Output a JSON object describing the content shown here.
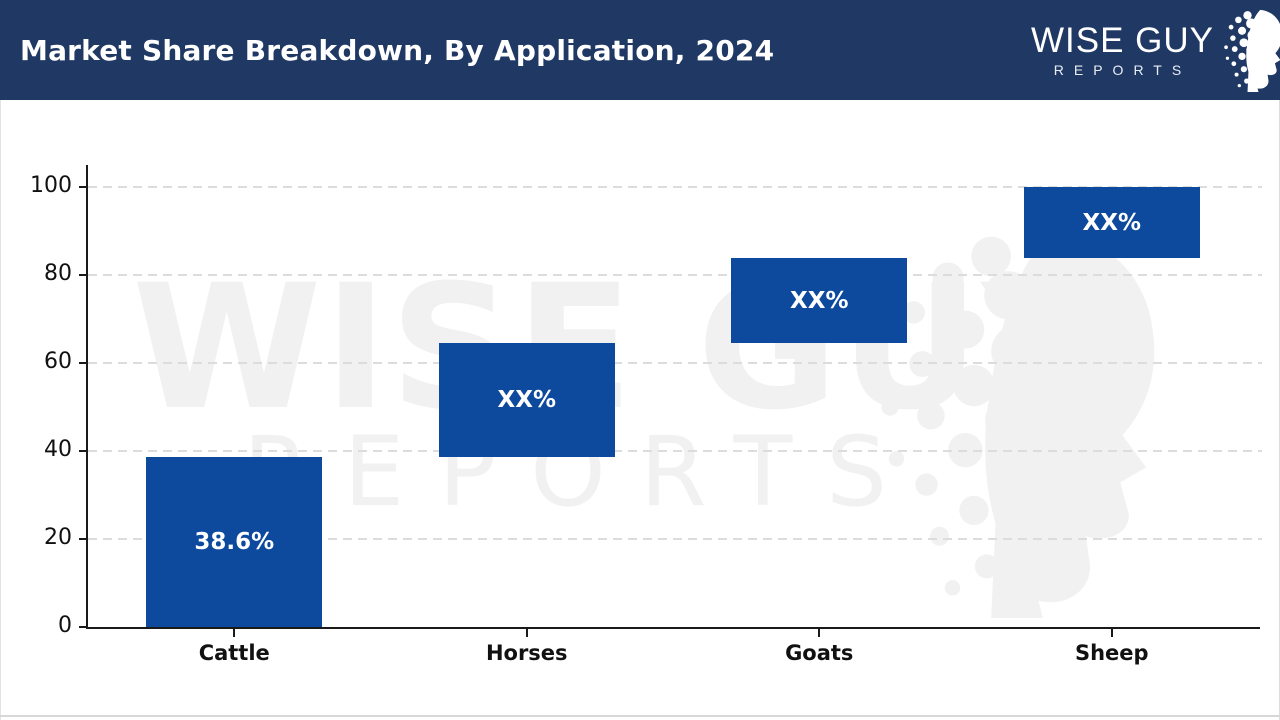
{
  "header": {
    "title": "Market Share Breakdown, By Application, 2024"
  },
  "brand": {
    "name": "WISE GUY",
    "subtitle": "REPORTS",
    "icon": "dotted-head-profile-icon"
  },
  "watermark": {
    "line1": "WISE GUY",
    "line2": "REPORTS",
    "icon": "dotted-head-profile-icon"
  },
  "chart_data": {
    "type": "bar",
    "subtype": "waterfall",
    "title": "Market Share Breakdown, By Application, 2024",
    "categories": [
      "Cattle",
      "Horses",
      "Goats",
      "Sheep"
    ],
    "segments": [
      {
        "category": "Cattle",
        "start": 0,
        "end": 38.6,
        "label": "38.6%"
      },
      {
        "category": "Horses",
        "start": 38.6,
        "end": 64.6,
        "label": "XX%"
      },
      {
        "category": "Goats",
        "start": 64.6,
        "end": 83.8,
        "label": "XX%"
      },
      {
        "category": "Sheep",
        "start": 83.8,
        "end": 100,
        "label": "XX%"
      }
    ],
    "xlabel": "",
    "ylabel": "",
    "ylim": [
      0,
      105
    ],
    "yticks": [
      0,
      20,
      40,
      60,
      80,
      100
    ],
    "grid": "horizontal-dashed",
    "legend": "none",
    "colors": {
      "bar": "#0d4a9e",
      "bar_label": "#ffffff",
      "header_bg": "#203864",
      "grid": "#dcdcdc",
      "axis": "#1a1a1a",
      "watermark": "#f1f1f1"
    }
  }
}
